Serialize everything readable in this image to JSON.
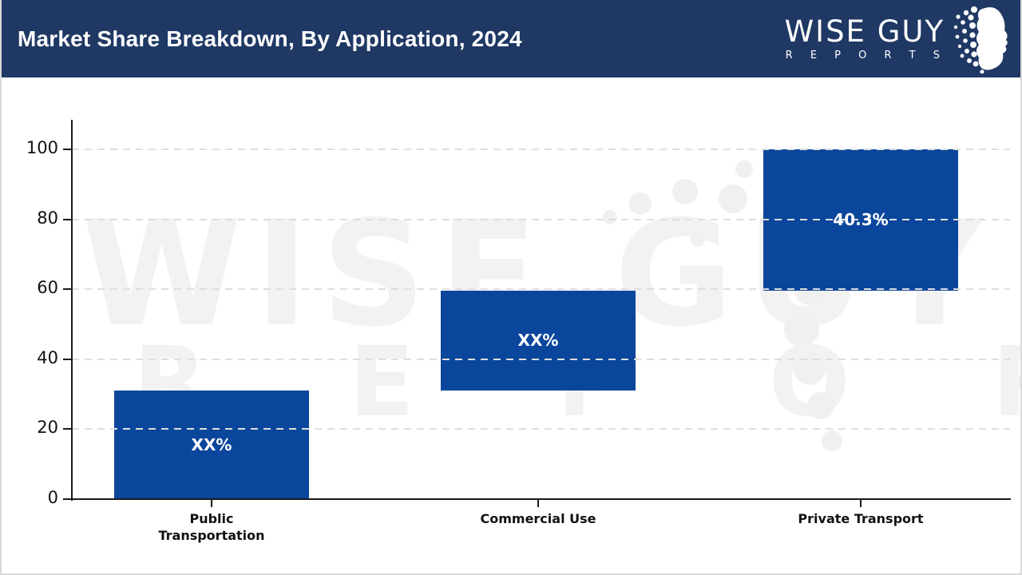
{
  "header": {
    "title": "Market Share Breakdown, By Application, 2024",
    "bg_color": "#1f3864",
    "logo": {
      "line1": "WISE GUY",
      "line2": "R E P O R T S"
    }
  },
  "watermark": {
    "line1": "WISE GUY",
    "line2": "R E P O R T S",
    "color": "#f2f2f2"
  },
  "chart_data": {
    "type": "bar",
    "variant": "floating-segment-waterfall",
    "title": "Market Share Breakdown, By Application, 2024",
    "categories": [
      "Public Transportation",
      "Commercial Use",
      "Private Transport"
    ],
    "category_label_lines": [
      [
        "Public",
        "Transportation"
      ],
      [
        "Commercial Use"
      ],
      [
        "Private Transport"
      ]
    ],
    "segments": [
      {
        "category": "Public Transportation",
        "start": 0,
        "end": 31,
        "label": "XX%"
      },
      {
        "category": "Commercial Use",
        "start": 31,
        "end": 59.7,
        "label": "XX%"
      },
      {
        "category": "Private Transport",
        "start": 59.7,
        "end": 100,
        "label": "40.3%",
        "value": 40.3
      }
    ],
    "ylim": [
      0,
      100
    ],
    "yticks": [
      0,
      20,
      40,
      60,
      80,
      100
    ],
    "grid": {
      "horizontal": true,
      "style": "dashed",
      "color": "#dedede"
    },
    "legend": "none",
    "bar_color": "#0a469c",
    "bar_label_color": "#ffffff",
    "axis_color": "#1a1a1a"
  }
}
